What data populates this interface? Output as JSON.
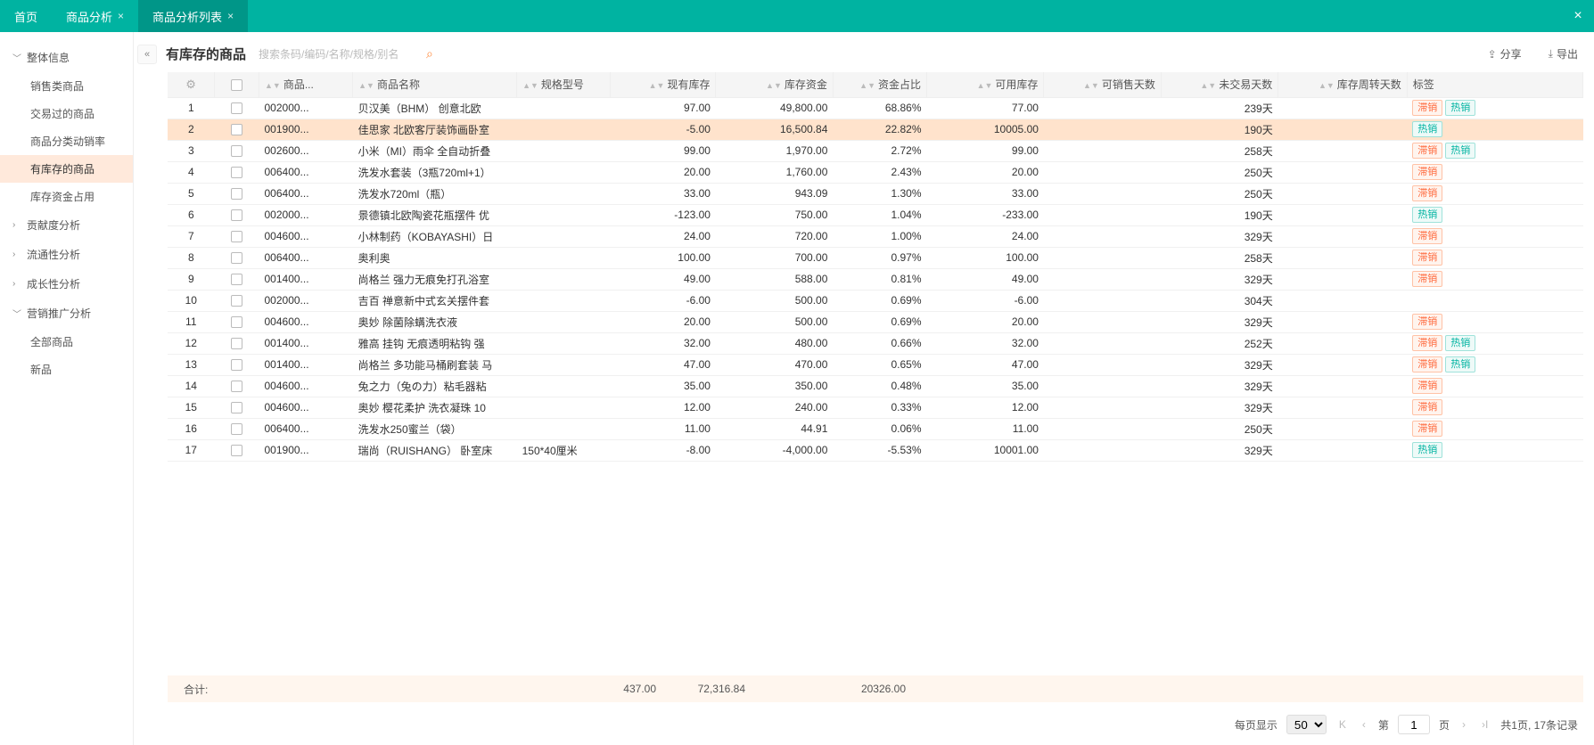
{
  "tabs": [
    {
      "label": "首页",
      "closable": false
    },
    {
      "label": "商品分析",
      "closable": true
    },
    {
      "label": "商品分析列表",
      "closable": true,
      "active": true
    }
  ],
  "close_all_title": "×",
  "sidebar": {
    "groups": [
      {
        "label": "整体信息",
        "open": true,
        "children": [
          {
            "label": "销售类商品"
          },
          {
            "label": "交易过的商品"
          },
          {
            "label": "商品分类动销率"
          },
          {
            "label": "有库存的商品",
            "active": true
          },
          {
            "label": "库存资金占用"
          }
        ]
      },
      {
        "label": "贡献度分析",
        "open": false
      },
      {
        "label": "流通性分析",
        "open": false
      },
      {
        "label": "成长性分析",
        "open": false
      },
      {
        "label": "营销推广分析",
        "open": true,
        "children": [
          {
            "label": "全部商品"
          },
          {
            "label": "新品"
          }
        ]
      }
    ]
  },
  "collapse_icon": "«",
  "header": {
    "title": "有库存的商品",
    "search_placeholder": "搜索条码/编码/名称/规格/别名",
    "share": "分享",
    "export": "导出"
  },
  "columns": {
    "idx": "",
    "chk": "",
    "code": "商品...",
    "name": "商品名称",
    "spec": "规格型号",
    "stock": "现有库存",
    "amount": "库存资金",
    "pct": "资金占比",
    "avail": "可用库存",
    "saledays": "可销售天数",
    "notrx": "未交易天数",
    "turn": "库存周转天数",
    "tags": "标签"
  },
  "rows": [
    {
      "idx": 1,
      "code": "002000...",
      "name": "贝汉美（BHM） 创意北欧",
      "spec": "",
      "stock": "97.00",
      "amount": "49,800.00",
      "pct": "68.86%",
      "avail": "77.00",
      "saledays": "",
      "notrx": "239天",
      "turn": "",
      "tags": [
        "stale",
        "hot"
      ]
    },
    {
      "idx": 2,
      "code": "001900...",
      "name": "佳思家 北欧客厅装饰画卧室",
      "spec": "",
      "stock": "-5.00",
      "amount": "16,500.84",
      "pct": "22.82%",
      "avail": "10005.00",
      "saledays": "",
      "notrx": "190天",
      "turn": "",
      "tags": [
        "hot"
      ],
      "highlight": true
    },
    {
      "idx": 3,
      "code": "002600...",
      "name": "小米（MI）雨伞 全自动折叠",
      "spec": "",
      "stock": "99.00",
      "amount": "1,970.00",
      "pct": "2.72%",
      "avail": "99.00",
      "saledays": "",
      "notrx": "258天",
      "turn": "",
      "tags": [
        "stale",
        "hot"
      ]
    },
    {
      "idx": 4,
      "code": "006400...",
      "name": "洗发水套装（3瓶720ml+1）",
      "spec": "",
      "stock": "20.00",
      "amount": "1,760.00",
      "pct": "2.43%",
      "avail": "20.00",
      "saledays": "",
      "notrx": "250天",
      "turn": "",
      "tags": [
        "stale"
      ]
    },
    {
      "idx": 5,
      "code": "006400...",
      "name": "洗发水720ml（瓶）",
      "spec": "",
      "stock": "33.00",
      "amount": "943.09",
      "pct": "1.30%",
      "avail": "33.00",
      "saledays": "",
      "notrx": "250天",
      "turn": "",
      "tags": [
        "stale"
      ]
    },
    {
      "idx": 6,
      "code": "002000...",
      "name": "景德镇北欧陶瓷花瓶摆件 优",
      "spec": "",
      "stock": "-123.00",
      "amount": "750.00",
      "pct": "1.04%",
      "avail": "-233.00",
      "saledays": "",
      "notrx": "190天",
      "turn": "",
      "tags": [
        "hot"
      ]
    },
    {
      "idx": 7,
      "code": "004600...",
      "name": "小林制药（KOBAYASHI）日",
      "spec": "",
      "stock": "24.00",
      "amount": "720.00",
      "pct": "1.00%",
      "avail": "24.00",
      "saledays": "",
      "notrx": "329天",
      "turn": "",
      "tags": [
        "stale"
      ]
    },
    {
      "idx": 8,
      "code": "006400...",
      "name": "奥利奥",
      "spec": "",
      "stock": "100.00",
      "amount": "700.00",
      "pct": "0.97%",
      "avail": "100.00",
      "saledays": "",
      "notrx": "258天",
      "turn": "",
      "tags": [
        "stale"
      ]
    },
    {
      "idx": 9,
      "code": "001400...",
      "name": "尚格兰 强力无痕免打孔浴室",
      "spec": "",
      "stock": "49.00",
      "amount": "588.00",
      "pct": "0.81%",
      "avail": "49.00",
      "saledays": "",
      "notrx": "329天",
      "turn": "",
      "tags": [
        "stale"
      ]
    },
    {
      "idx": 10,
      "code": "002000...",
      "name": "吉百 禅意新中式玄关摆件套",
      "spec": "",
      "stock": "-6.00",
      "amount": "500.00",
      "pct": "0.69%",
      "avail": "-6.00",
      "saledays": "",
      "notrx": "304天",
      "turn": "",
      "tags": []
    },
    {
      "idx": 11,
      "code": "004600...",
      "name": "奥妙 除菌除螨洗衣液",
      "spec": "",
      "stock": "20.00",
      "amount": "500.00",
      "pct": "0.69%",
      "avail": "20.00",
      "saledays": "",
      "notrx": "329天",
      "turn": "",
      "tags": [
        "stale"
      ]
    },
    {
      "idx": 12,
      "code": "001400...",
      "name": "雅高 挂钩 无痕透明粘钩 强",
      "spec": "",
      "stock": "32.00",
      "amount": "480.00",
      "pct": "0.66%",
      "avail": "32.00",
      "saledays": "",
      "notrx": "252天",
      "turn": "",
      "tags": [
        "stale",
        "hot"
      ]
    },
    {
      "idx": 13,
      "code": "001400...",
      "name": "尚格兰 多功能马桶刷套装 马",
      "spec": "",
      "stock": "47.00",
      "amount": "470.00",
      "pct": "0.65%",
      "avail": "47.00",
      "saledays": "",
      "notrx": "329天",
      "turn": "",
      "tags": [
        "stale",
        "hot"
      ]
    },
    {
      "idx": 14,
      "code": "004600...",
      "name": "兔之力（兔の力）粘毛器粘",
      "spec": "",
      "stock": "35.00",
      "amount": "350.00",
      "pct": "0.48%",
      "avail": "35.00",
      "saledays": "",
      "notrx": "329天",
      "turn": "",
      "tags": [
        "stale"
      ]
    },
    {
      "idx": 15,
      "code": "004600...",
      "name": "奥妙 樱花柔护 洗衣凝珠 10",
      "spec": "",
      "stock": "12.00",
      "amount": "240.00",
      "pct": "0.33%",
      "avail": "12.00",
      "saledays": "",
      "notrx": "329天",
      "turn": "",
      "tags": [
        "stale"
      ]
    },
    {
      "idx": 16,
      "code": "006400...",
      "name": "洗发水250蜜兰（袋）",
      "spec": "",
      "stock": "11.00",
      "amount": "44.91",
      "pct": "0.06%",
      "avail": "11.00",
      "saledays": "",
      "notrx": "250天",
      "turn": "",
      "tags": [
        "stale"
      ]
    },
    {
      "idx": 17,
      "code": "001900...",
      "name": "瑞尚（RUISHANG） 卧室床",
      "spec": "150*40厘米",
      "stock": "-8.00",
      "amount": "-4,000.00",
      "pct": "-5.53%",
      "avail": "10001.00",
      "saledays": "",
      "notrx": "329天",
      "turn": "",
      "tags": [
        "hot"
      ]
    }
  ],
  "tag_labels": {
    "stale": "滞销",
    "hot": "热销"
  },
  "totals": {
    "label": "合计:",
    "stock": "437.00",
    "amount": "72,316.84",
    "avail": "20326.00"
  },
  "pager": {
    "per_page_label": "每页显示",
    "per_page_value": "50",
    "first": "K",
    "prev": "‹",
    "pre_page": "第",
    "page": "1",
    "post_page": "页",
    "next": "›",
    "last": "›I",
    "summary": "共1页, 17条记录"
  }
}
